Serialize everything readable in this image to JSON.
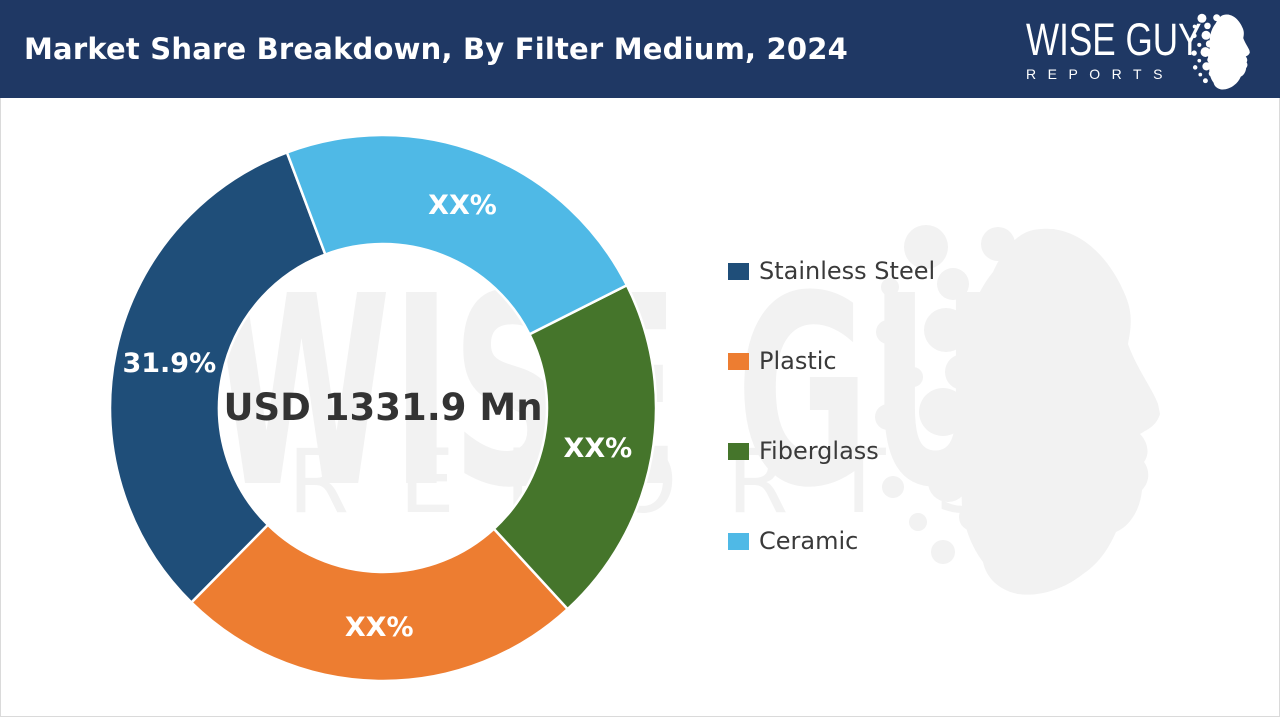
{
  "header": {
    "title": "Market Share Breakdown, By Filter Medium, 2024",
    "logo": {
      "line1": "WISE GUY",
      "line2": "REPORTS"
    }
  },
  "watermark": {
    "line1": "WISE GUY",
    "line2": "REPORTS"
  },
  "chart_data": {
    "type": "pie",
    "subtype": "donut",
    "title": "Market Share Breakdown, By Filter Medium, 2024",
    "center_label": "USD 1331.9 Mn",
    "start_angle_deg": 110.6,
    "direction": "counterclockwise",
    "inner_radius_ratio": 0.6,
    "legend_position": "right",
    "segments": [
      {
        "name": "Stainless Steel",
        "label": "31.9%",
        "value_pct": 31.9,
        "color": "#1F4E79"
      },
      {
        "name": "Plastic",
        "label": "XX%",
        "value_pct": 24.2,
        "color": "#ED7D31"
      },
      {
        "name": "Fiberglass",
        "label": "XX%",
        "value_pct": 20.6,
        "color": "#45752B"
      },
      {
        "name": "Ceramic",
        "label": "XX%",
        "value_pct": 23.3,
        "color": "#4FB9E6"
      }
    ]
  },
  "colors": {
    "header_bg": "#1F3864",
    "title_text": "#FFFFFF",
    "center_text": "#333333",
    "legend_text": "#3A3A3A",
    "watermark": "#F2F2F2",
    "frame_border": "#DADADA"
  }
}
